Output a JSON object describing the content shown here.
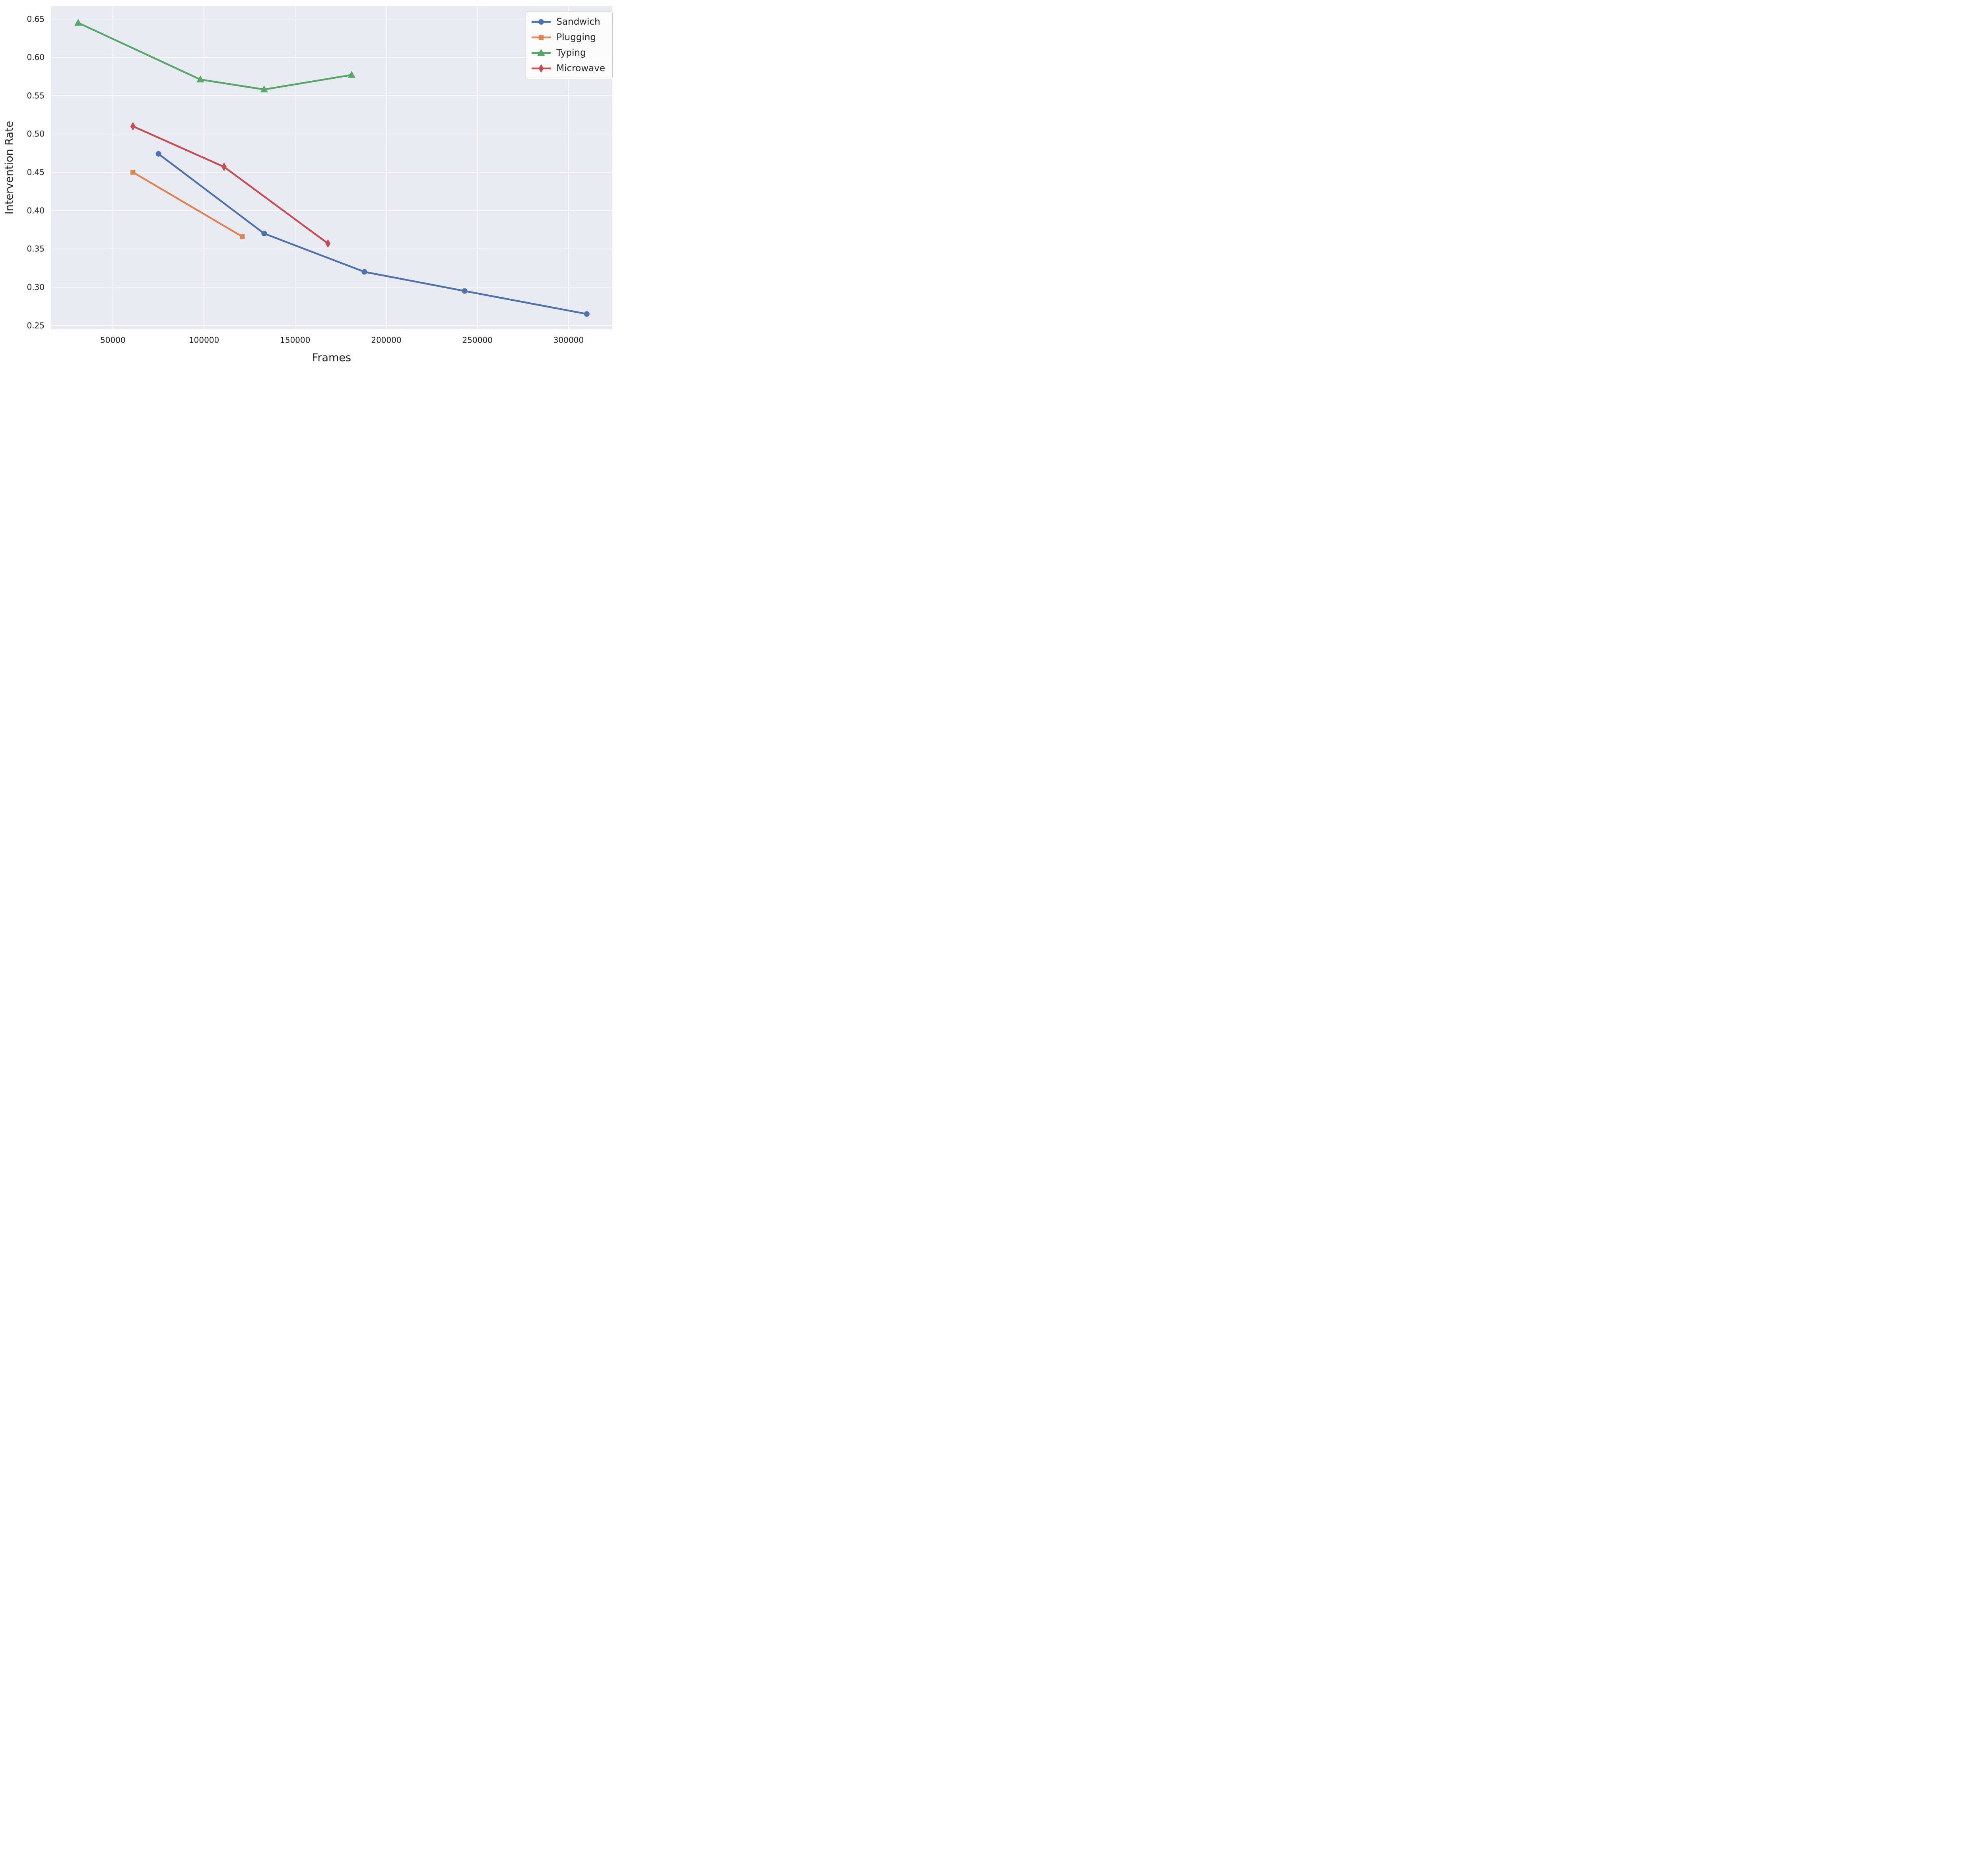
{
  "figure": {
    "background": "#ffffff",
    "plot_background": "#eaeaf2",
    "grid_color": "#ffffff",
    "tick_label_color": "#262626",
    "axis_label_color": "#262626",
    "legend_border_color": "#cccccc"
  },
  "chart_data": {
    "type": "line",
    "title": "",
    "xlabel": "Frames",
    "ylabel": "Intervention Rate",
    "xlim": [
      16000,
      324000
    ],
    "ylim": [
      0.245,
      0.667
    ],
    "x_ticks": [
      50000,
      100000,
      150000,
      200000,
      250000,
      300000
    ],
    "y_ticks": [
      0.25,
      0.3,
      0.35,
      0.4,
      0.45,
      0.5,
      0.55,
      0.6,
      0.65
    ],
    "grid": true,
    "legend_position": "upper right",
    "legend_entries": [
      "Sandwich",
      "Plugging",
      "Typing",
      "Microwave"
    ],
    "series": [
      {
        "name": "Sandwich",
        "color": "#4c72b0",
        "marker": "circle",
        "x": [
          75000,
          133000,
          188000,
          243000,
          310000
        ],
        "y": [
          0.474,
          0.37,
          0.32,
          0.295,
          0.265
        ]
      },
      {
        "name": "Plugging",
        "color": "#dd8452",
        "marker": "square",
        "x": [
          61000,
          121000
        ],
        "y": [
          0.45,
          0.366
        ]
      },
      {
        "name": "Typing",
        "color": "#55a868",
        "marker": "triangle",
        "x": [
          31000,
          98000,
          133000,
          181000
        ],
        "y": [
          0.645,
          0.571,
          0.558,
          0.577
        ]
      },
      {
        "name": "Microwave",
        "color": "#c44e52",
        "marker": "diamond",
        "x": [
          61000,
          111000,
          168000
        ],
        "y": [
          0.51,
          0.457,
          0.357
        ]
      }
    ]
  }
}
